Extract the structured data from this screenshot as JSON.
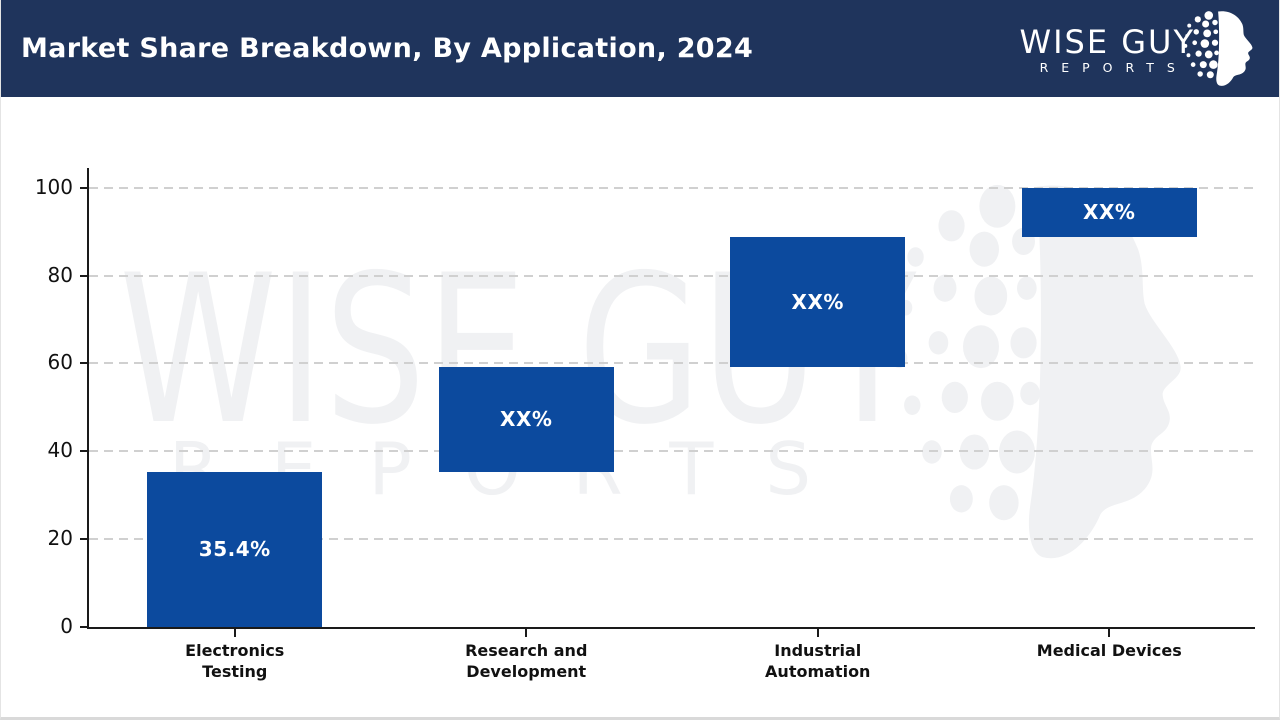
{
  "header": {
    "title": "Market Share Breakdown, By Application, 2024",
    "logo": {
      "wordmark": "WISE GUY",
      "subtext": "REPORTS"
    }
  },
  "watermark": {
    "wordmark": "WISE GUY",
    "subtext": "REPORTS"
  },
  "colors": {
    "header_bg": "#1f345c",
    "bar_fill": "#0c4a9e",
    "bar_label_text": "#ffffff",
    "grid_line": "#d0d0d0",
    "axis_line": "#1a1a1a",
    "tick_label_text": "#111111",
    "watermark": "#f0f1f3"
  },
  "chart_data": {
    "type": "bar",
    "subtype": "floating-segment-waterfall",
    "title": "Market Share Breakdown, By Application, 2024",
    "xlabel": "",
    "ylabel": "",
    "ylim": [
      0,
      104.5
    ],
    "yticks": [
      0,
      20,
      40,
      60,
      80,
      100
    ],
    "grid": "horizontal-dashed",
    "legend": "none",
    "bar_width_frac": 0.6,
    "categories": [
      "Electronics Testing",
      "Research and Development",
      "Industrial Automation",
      "Medical Devices"
    ],
    "bars": [
      {
        "id": "electronics-testing",
        "category_lines": [
          "Electronics",
          "Testing"
        ],
        "start": 0,
        "end": 35.4,
        "label": "35.4%"
      },
      {
        "id": "research-and-development",
        "category_lines": [
          "Research and",
          "Development"
        ],
        "start": 35.4,
        "end": 59.2,
        "label": "XX%"
      },
      {
        "id": "industrial-automation",
        "category_lines": [
          "Industrial",
          "Automation"
        ],
        "start": 59.2,
        "end": 88.8,
        "label": "XX%"
      },
      {
        "id": "medical-devices",
        "category_lines": [
          "Medical Devices"
        ],
        "start": 88.8,
        "end": 100,
        "label": "XX%"
      }
    ]
  }
}
